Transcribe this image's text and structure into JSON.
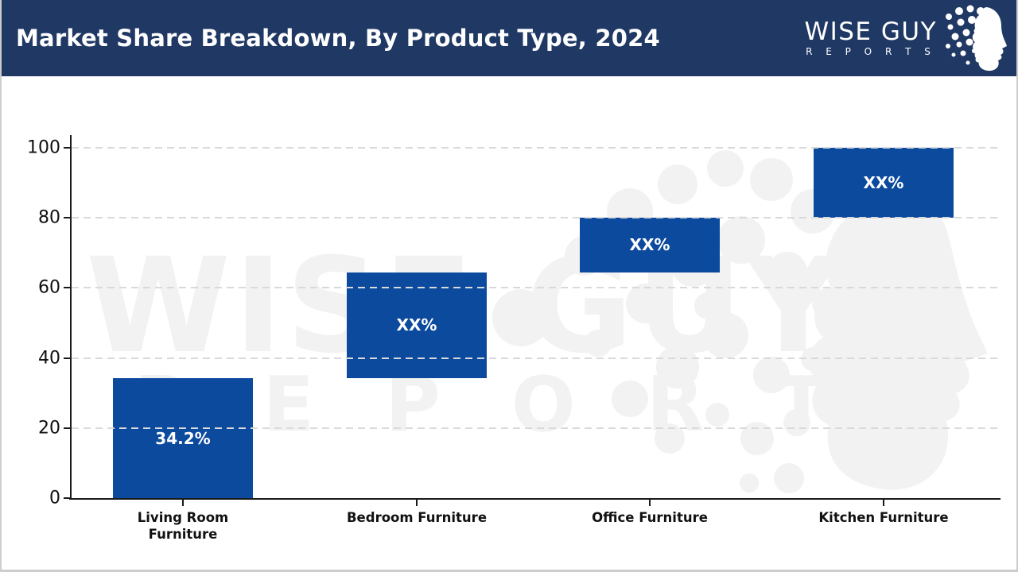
{
  "header": {
    "title": "Market Share Breakdown, By Product Type, 2024",
    "logo": {
      "line1": "WISE GUY",
      "line2": "R E P O R T S"
    }
  },
  "watermark": {
    "line1": "WISE GUY",
    "line2": "R E P O R T S"
  },
  "colors": {
    "header_bg": "#203864",
    "bar": "#0c4a9e",
    "grid": "#d9d9d9",
    "axis": "#1a1a1a",
    "watermark": "#f2f2f2",
    "label_on_bar": "#ffffff"
  },
  "chart_data": {
    "type": "bar",
    "subtype": "waterfall-stepped",
    "title": "Market Share Breakdown, By Product Type, 2024",
    "categories": [
      "Living Room\nFurniture",
      "Bedroom Furniture",
      "Office Furniture",
      "Kitchen Furniture"
    ],
    "segments": [
      {
        "category": "Living Room Furniture",
        "start": 0,
        "end": 34.2,
        "label": "34.2%"
      },
      {
        "category": "Bedroom Furniture",
        "start": 34.2,
        "end": 64.5,
        "label": "XX%"
      },
      {
        "category": "Office Furniture",
        "start": 64.5,
        "end": 80,
        "label": "XX%"
      },
      {
        "category": "Kitchen Furniture",
        "start": 80,
        "end": 100,
        "label": "XX%"
      }
    ],
    "ylim": [
      0,
      100
    ],
    "yticks": [
      0,
      20,
      40,
      60,
      80,
      100
    ],
    "xlabel": "",
    "ylabel": "",
    "grid": "dashed-horizontal-over-bars",
    "legend": "none"
  }
}
